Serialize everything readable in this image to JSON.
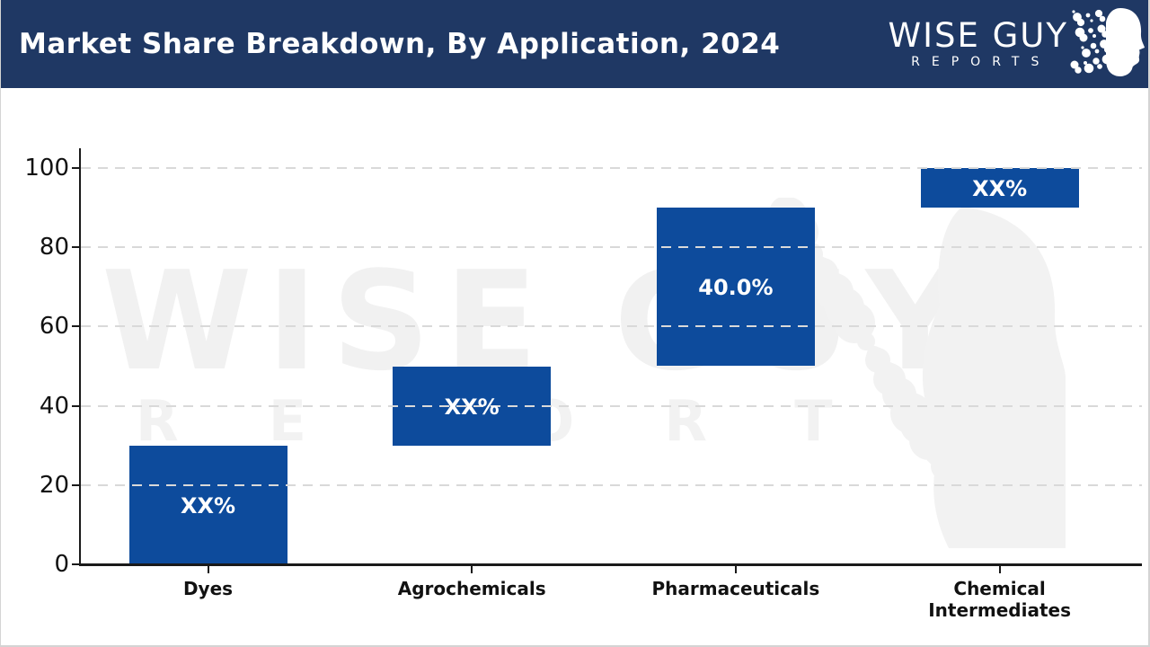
{
  "header": {
    "title": "Market Share Breakdown, By Application, 2024",
    "logo": {
      "line1": "WISE GUY",
      "line2": "REPORTS"
    }
  },
  "watermark": {
    "line1": "WISE GUY",
    "line2": "REPORTS"
  },
  "chart_data": {
    "type": "bar",
    "subtype": "waterfall",
    "title": "Market Share Breakdown, By Application, 2024",
    "categories": [
      "Dyes",
      "Agrochemicals",
      "Pharmaceuticals",
      "Chemical\nIntermediates"
    ],
    "segments": [
      {
        "category": "Dyes",
        "start": 0,
        "end": 30,
        "label": "XX%"
      },
      {
        "category": "Agrochemicals",
        "start": 30,
        "end": 50,
        "label": "XX%"
      },
      {
        "category": "Pharmaceuticals",
        "start": 50,
        "end": 90,
        "label": "40.0%"
      },
      {
        "category": "Chemical Intermediates",
        "start": 90,
        "end": 100,
        "label": "XX%"
      }
    ],
    "values": [
      30,
      20,
      40,
      10
    ],
    "ylim": [
      0,
      100
    ],
    "yticks": [
      0,
      20,
      40,
      60,
      80,
      100
    ],
    "grid": "horizontal-dashed",
    "legend": "none",
    "colors": {
      "bar": "#0d4b9c",
      "bar_label": "#ffffff",
      "header_bg": "#1f3864",
      "watermark": "#f1f1f1",
      "gridline": "#d9d9d9",
      "axis": "#1a1a1a"
    }
  }
}
